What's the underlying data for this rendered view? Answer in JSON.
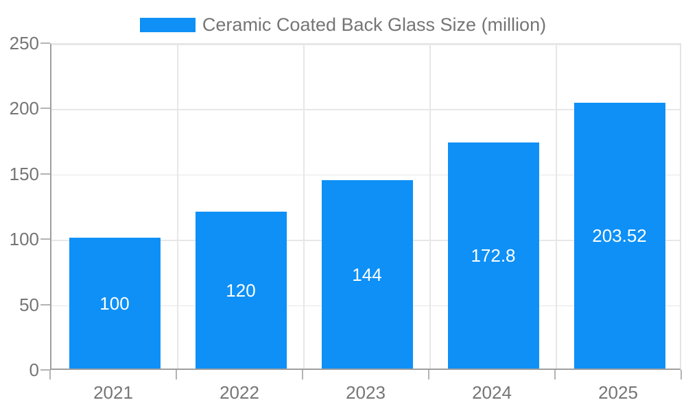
{
  "legend": {
    "label": "Ceramic Coated Back Glass Size (million)"
  },
  "colors": {
    "bar": "#0e90f6",
    "bar_label_text": "#ffffff",
    "axis_line": "#9e9e9e",
    "plot_border_light": "#e4e4e4",
    "gridline": "#e7e7e7",
    "tick_mark": "#b3b3b3",
    "tick_label_text": "#757575",
    "background": "#ffffff"
  },
  "chart_data": {
    "type": "bar",
    "title": "Ceramic Coated Back Glass Size (million)",
    "categories": [
      "2021",
      "2022",
      "2023",
      "2024",
      "2025"
    ],
    "series": [
      {
        "name": "Ceramic Coated Back Glass Size (million)",
        "values": [
          100,
          120,
          144,
          172.8,
          203.52
        ]
      }
    ],
    "bar_labels": [
      "100",
      "120",
      "144",
      "172.8",
      "203.52"
    ],
    "xlabel": "",
    "ylabel": "",
    "ylim": [
      0,
      250
    ],
    "yticks": [
      0,
      50,
      100,
      150,
      200,
      250
    ],
    "ytick_labels": [
      "0",
      "50",
      "100",
      "150",
      "200",
      "250"
    ],
    "grid": true,
    "legend_position": "top-center",
    "bar_label_position": "inside-center"
  }
}
